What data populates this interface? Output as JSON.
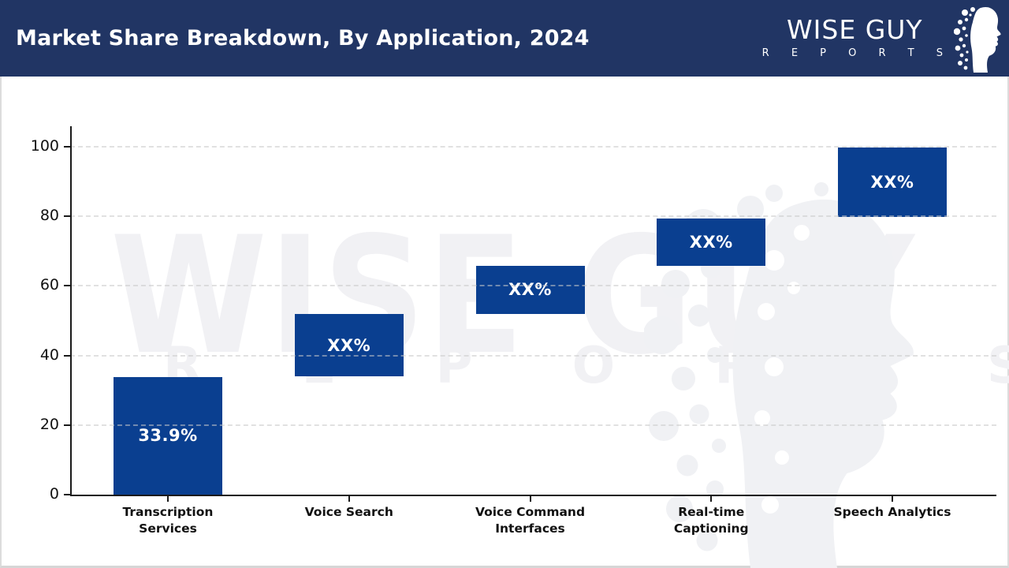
{
  "header": {
    "title": "Market Share Breakdown, By Application, 2024",
    "brand": {
      "name": "WISE GUY",
      "subtitle": "R E P O R T S"
    }
  },
  "watermark": {
    "line1": "WISE GUY",
    "line2": "R E P O R T S"
  },
  "chart_data": {
    "type": "bar",
    "subtype": "waterfall",
    "title": "Market Share Breakdown, By Application, 2024",
    "categories": [
      "Transcription Services",
      "Voice Search",
      "Voice Command Interfaces",
      "Real-time Captioning",
      "Speech Analytics"
    ],
    "category_label_lines": [
      [
        "Transcription",
        "Services"
      ],
      [
        "Voice Search"
      ],
      [
        "Voice Command",
        "Interfaces"
      ],
      [
        "Real-time",
        "Captioning"
      ],
      [
        "Speech Analytics"
      ]
    ],
    "segments": [
      {
        "category": "Transcription Services",
        "start": 0,
        "end": 33.9,
        "label": "33.9%"
      },
      {
        "category": "Voice Search",
        "start": 33.9,
        "end": 51.9,
        "label": "XX%"
      },
      {
        "category": "Voice Command Interfaces",
        "start": 51.9,
        "end": 65.8,
        "label": "XX%"
      },
      {
        "category": "Real-time Captioning",
        "start": 65.8,
        "end": 79.4,
        "label": "XX%"
      },
      {
        "category": "Speech Analytics",
        "start": 79.8,
        "end": 99.8,
        "label": "XX%"
      }
    ],
    "y_ticks": [
      0,
      20,
      40,
      60,
      80,
      100
    ],
    "ylim": [
      0,
      106
    ],
    "xlabel": "",
    "ylabel": "",
    "grid": "horizontal-dashed",
    "legend": false,
    "bar_color": "#0a3f90",
    "bar_label_color": "#ffffff"
  },
  "colors": {
    "header_bg": "#213564",
    "bar": "#0a3f90",
    "axis": "#1a1a1a",
    "gridline": "#d8d8d8",
    "watermark": "#f1f1f4",
    "border": "#dcdcdc"
  }
}
